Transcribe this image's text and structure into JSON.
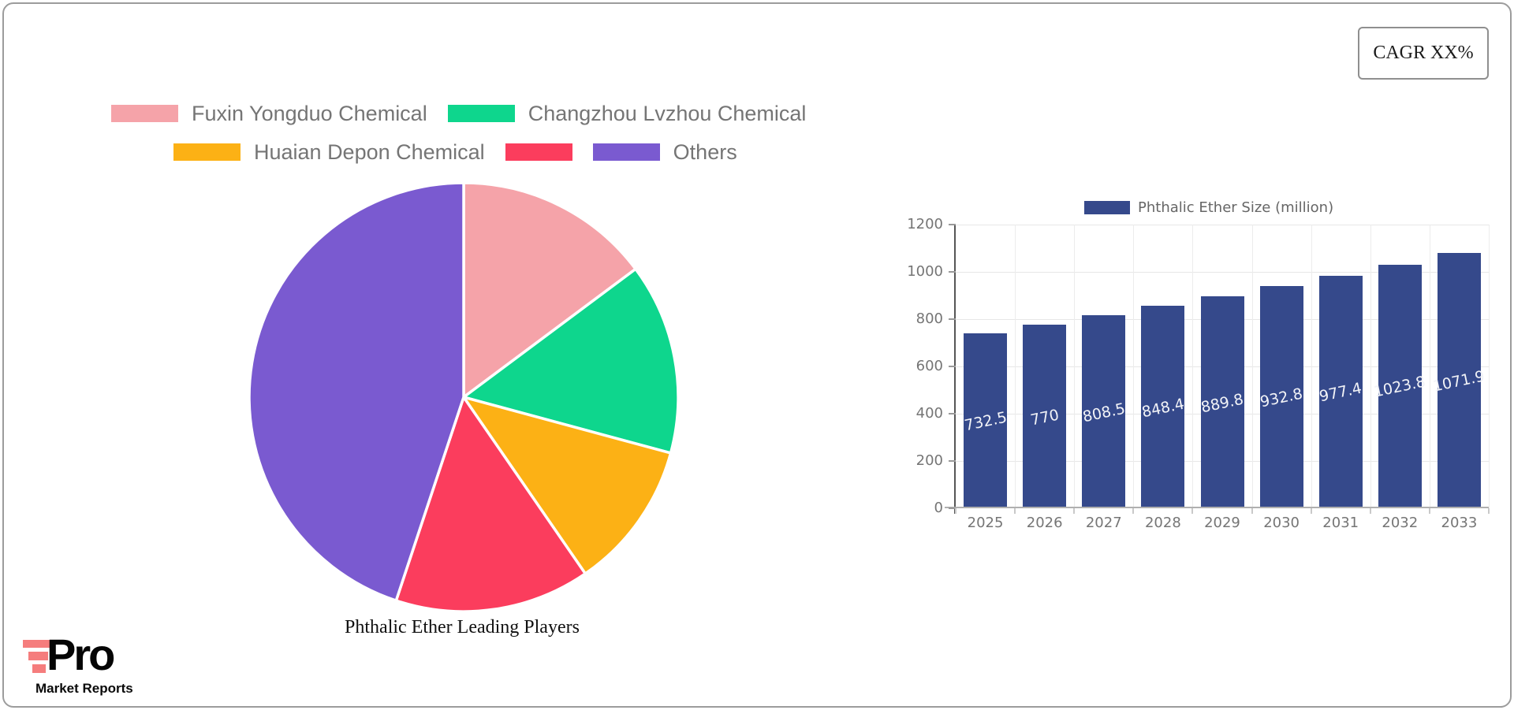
{
  "cagr": {
    "label": "CAGR XX%"
  },
  "logo": {
    "title": "Pro",
    "subtitle": "Market Reports"
  },
  "chart_data": [
    {
      "type": "pie",
      "title": "Phthalic Ether Leading Players",
      "labels": [
        "Fuxin Yongduo Chemical",
        "Changzhou Lvzhou Chemical",
        "Huaian Depon Chemical",
        "",
        "Others"
      ],
      "values": [
        14.8,
        14.4,
        11.2,
        14.7,
        44.9
      ],
      "colors": [
        "#f5a3a9",
        "#0ed68d",
        "#fcb115",
        "#fb3d5d",
        "#7a5ad0"
      ],
      "legend_rows": [
        [
          0,
          1
        ],
        [
          2,
          3,
          4
        ]
      ],
      "start_angle_deg": 0,
      "slice_border_color": "#ffffff",
      "legend_text_color": "#757575"
    },
    {
      "type": "bar",
      "legend_label": "Phthalic Ether Size (million)",
      "legend_position": "top",
      "categories": [
        "2025",
        "2026",
        "2027",
        "2028",
        "2029",
        "2030",
        "2031",
        "2032",
        "2033"
      ],
      "values": [
        732.5,
        770,
        808.5,
        848.4,
        889.8,
        932.8,
        977.4,
        1023.8,
        1071.9
      ],
      "ylim": [
        0,
        1200
      ],
      "yticks": [
        0,
        200,
        400,
        600,
        800,
        1000,
        1200
      ],
      "grid": true,
      "bar_color": "#35498b",
      "value_label_color": "#f2f3f7",
      "axis_text_color": "#757575"
    }
  ]
}
